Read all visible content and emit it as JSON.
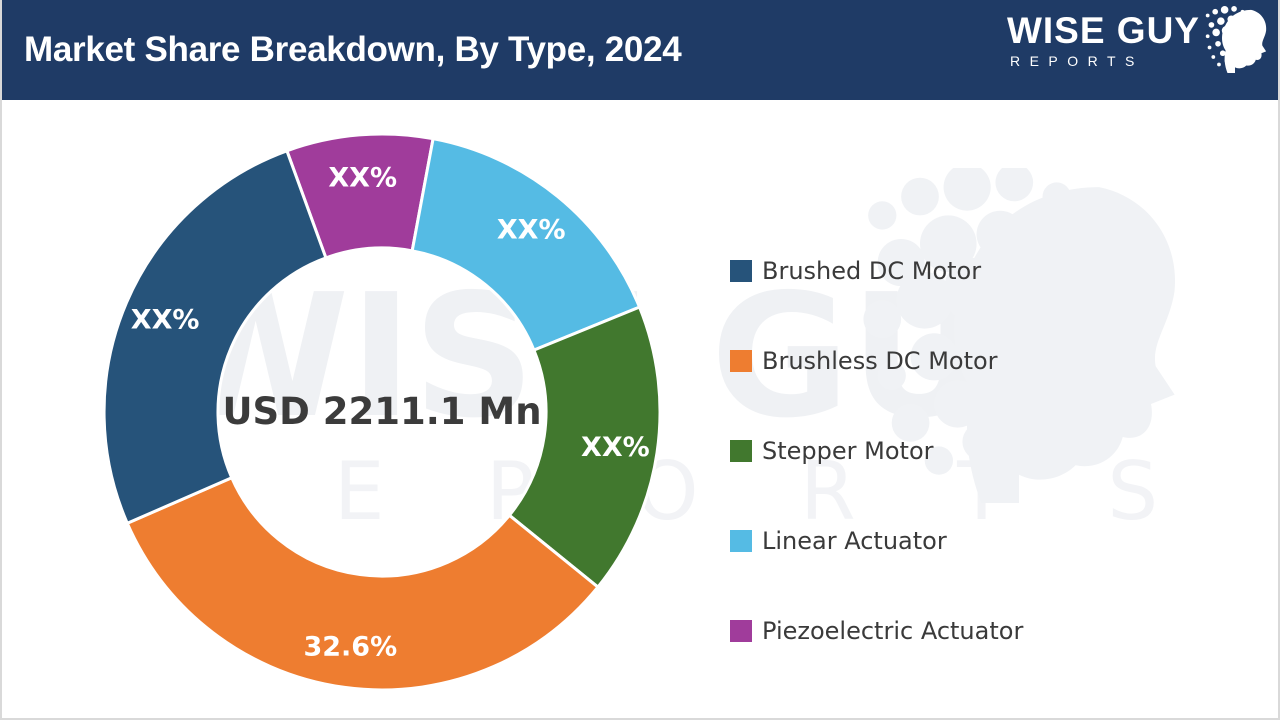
{
  "header": {
    "title": "Market Share Breakdown, By Type, 2024",
    "background_color": "#1F3B66",
    "logo": {
      "line1": "WISE GUY",
      "line2": "REPORTS"
    }
  },
  "watermark": {
    "line1": "WISE GUY",
    "line2": "R E P O R T S"
  },
  "chart_data": {
    "type": "pie",
    "subtype": "donut",
    "title": "Market Share Breakdown, By Type, 2024",
    "center_label": "USD 2211.1 Mn",
    "center_label_color": "#3b3b3b",
    "value_label_color": "#ffffff",
    "legend_position": "right",
    "start_angle_deg_from_top": -20,
    "draw_order_note": "segments drawn clockwise from top in reverse legend order",
    "segments": [
      {
        "name": "Brushed DC Motor",
        "color": "#26537A",
        "display_label": "XX%",
        "share_pct": 26.0,
        "value_shown": false
      },
      {
        "name": "Brushless DC Motor",
        "color": "#EE7D30",
        "display_label": "32.6%",
        "share_pct": 32.6,
        "value_shown": true
      },
      {
        "name": "Stepper Motor",
        "color": "#41782E",
        "display_label": "XX%",
        "share_pct": 17.0,
        "value_shown": false
      },
      {
        "name": "Linear Actuator",
        "color": "#55BBE4",
        "display_label": "XX%",
        "share_pct": 15.9,
        "value_shown": false
      },
      {
        "name": "Piezoelectric Actuator",
        "color": "#A03C9B",
        "display_label": "XX%",
        "share_pct": 8.5,
        "value_shown": false
      }
    ]
  }
}
